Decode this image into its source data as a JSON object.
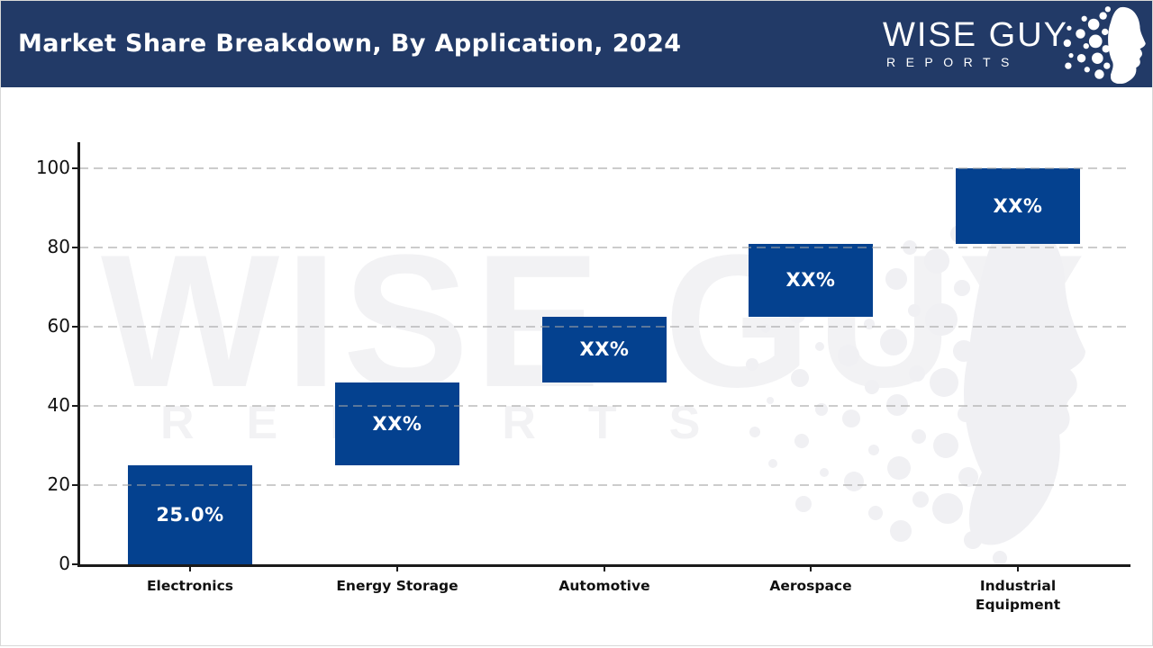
{
  "header": {
    "title": "Market Share Breakdown, By Application, 2024",
    "logo": {
      "wordmark": "WISE GUY",
      "subtitle": "REPORTS"
    }
  },
  "watermark": {
    "wordmark": "WISE GUY",
    "subtitle": "REPORTS"
  },
  "chart_data": {
    "type": "bar",
    "subtype": "waterfall",
    "title": "Market Share Breakdown, By Application, 2024",
    "categories": [
      "Electronics",
      "Energy Storage",
      "Automotive",
      "Aerospace",
      "Industrial Equipment"
    ],
    "segments": [
      {
        "category": "Electronics",
        "start": 0,
        "end": 25.0,
        "label": "25.0%"
      },
      {
        "category": "Energy Storage",
        "start": 25.0,
        "end": 45.9,
        "label": "XX%"
      },
      {
        "category": "Automotive",
        "start": 45.9,
        "end": 62.6,
        "label": "XX%"
      },
      {
        "category": "Aerospace",
        "start": 62.6,
        "end": 81.0,
        "label": "XX%"
      },
      {
        "category": "Industrial Equipment",
        "start": 81.0,
        "end": 100.0,
        "label": "XX%"
      }
    ],
    "xlabel": "",
    "ylabel": "",
    "ylim": [
      0,
      100
    ],
    "yticks": [
      "0",
      "20",
      "40",
      "60",
      "80",
      "100"
    ],
    "grid": "horizontal-dashed",
    "legend": "none",
    "bar_color": "#04418f",
    "bar_label_color": "#ffffff"
  },
  "colors": {
    "header_bg": "#223a67",
    "bar": "#04418f",
    "axis": "#1a1a1a",
    "grid": "#d9d9d9",
    "watermark": "#f2f2f4"
  }
}
